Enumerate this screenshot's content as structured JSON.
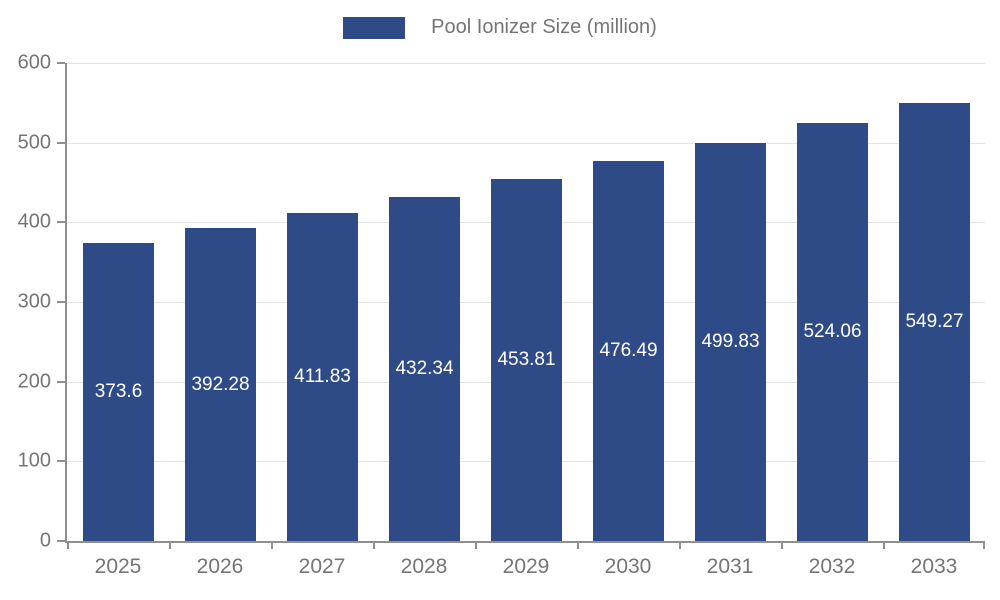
{
  "chart_data": {
    "type": "bar",
    "title": "Pool Ionizer Size (million)",
    "legend": "Pool Ionizer Size (million)",
    "categories": [
      "2025",
      "2026",
      "2027",
      "2028",
      "2029",
      "2030",
      "2031",
      "2032",
      "2033"
    ],
    "values": [
      373.6,
      392.28,
      411.83,
      432.34,
      453.81,
      476.49,
      499.83,
      524.06,
      549.27
    ],
    "xlabel": "",
    "ylabel": "",
    "ylim": [
      0,
      600
    ],
    "yticks": [
      0,
      100,
      200,
      300,
      400,
      500,
      600
    ],
    "grid": true,
    "legend_position": "top",
    "bar_color": "#2f4b87",
    "value_label_color": "#ffffff",
    "axis_color": "#8f8f8f",
    "grid_color": "#e4e4e4",
    "tick_label_color": "#757575",
    "background_color": "#ffffff"
  }
}
